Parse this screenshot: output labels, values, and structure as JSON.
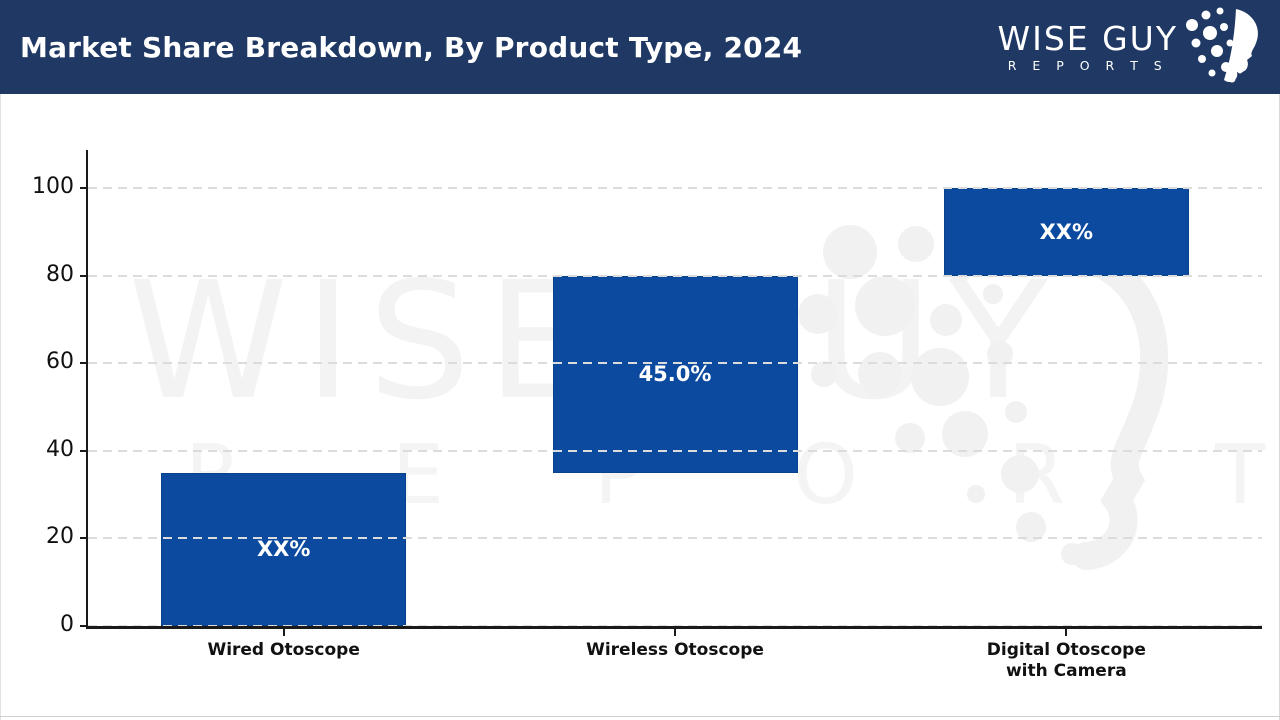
{
  "header": {
    "title": "Market Share Breakdown, By Product Type, 2024",
    "logo": {
      "name": "WISE GUY",
      "tagline": "R E P O R T S"
    }
  },
  "watermark": {
    "name": "WISE GUY",
    "tagline": "R E P O R T S"
  },
  "chart_data": {
    "type": "bar",
    "subtype": "floating-segment-bars (waterfall-style market share)",
    "title": "Market Share Breakdown, By Product Type, 2024",
    "categories": [
      "Wired Otoscope",
      "Wireless Otoscope",
      "Digital Otoscope\nwith Camera"
    ],
    "segments": [
      {
        "category": "Wired Otoscope",
        "start": 0,
        "end": 35,
        "label": "XX%"
      },
      {
        "category": "Wireless Otoscope",
        "start": 35,
        "end": 80,
        "label": "45.0%"
      },
      {
        "category": "Digital Otoscope with Camera",
        "start": 80,
        "end": 100,
        "label": "XX%"
      }
    ],
    "xlabel": "",
    "ylabel": "",
    "ylim": [
      0,
      108
    ],
    "yticks": [
      0,
      20,
      40,
      60,
      80,
      100
    ],
    "grid": "horizontal-dashed, drawn above bars",
    "legend": "none",
    "bar_color": "#0b4a9f",
    "bar_label_color": "#ffffff"
  },
  "colors": {
    "header_bg": "#1f3864",
    "bar": "#0b4a9f",
    "axis": "#1a1a1a",
    "grid": "#dcdcdc",
    "watermark": "#f3f3f3"
  }
}
